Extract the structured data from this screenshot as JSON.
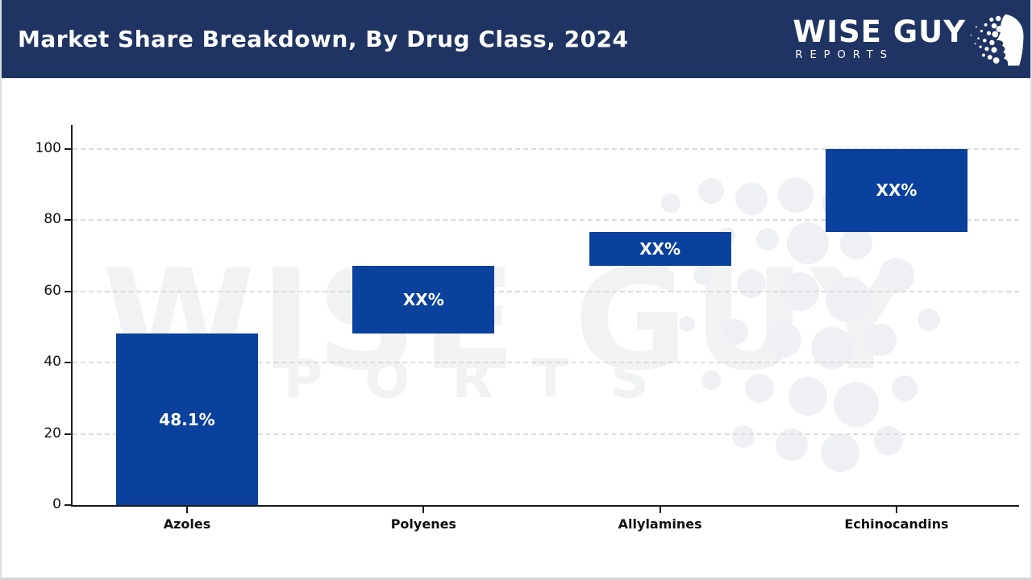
{
  "header": {
    "title": "Market Share Breakdown, By Drug Class, 2024",
    "bg_color": "#1f3462",
    "logo": {
      "line1": "WISE GUY",
      "line2": "REPORTS"
    }
  },
  "watermark": {
    "line1": "WISE GUY",
    "line2": "REPORTS"
  },
  "chart_data": {
    "type": "bar",
    "subtype": "waterfall",
    "title": "Market Share Breakdown, By Drug Class, 2024",
    "categories": [
      "Azoles",
      "Polyenes",
      "Allylamines",
      "Echinocandins"
    ],
    "segments": [
      {
        "category": "Azoles",
        "start": 0,
        "end": 48.1,
        "label": "48.1%"
      },
      {
        "category": "Polyenes",
        "start": 48.1,
        "end": 67.2,
        "label": "XX%"
      },
      {
        "category": "Allylamines",
        "start": 67.2,
        "end": 76.8,
        "label": "XX%"
      },
      {
        "category": "Echinocandins",
        "start": 76.8,
        "end": 100,
        "label": "XX%"
      }
    ],
    "yticks": [
      0,
      20,
      40,
      60,
      80,
      100
    ],
    "ylim": [
      0,
      106
    ],
    "xlabel": "",
    "ylabel": "",
    "grid": "horizontal-dashed",
    "legend": "none",
    "bar_color": "#09419c",
    "bar_label_color": "#ffffff",
    "axis_color": "#1a1a1a",
    "grid_color": "#dcdcdc"
  }
}
